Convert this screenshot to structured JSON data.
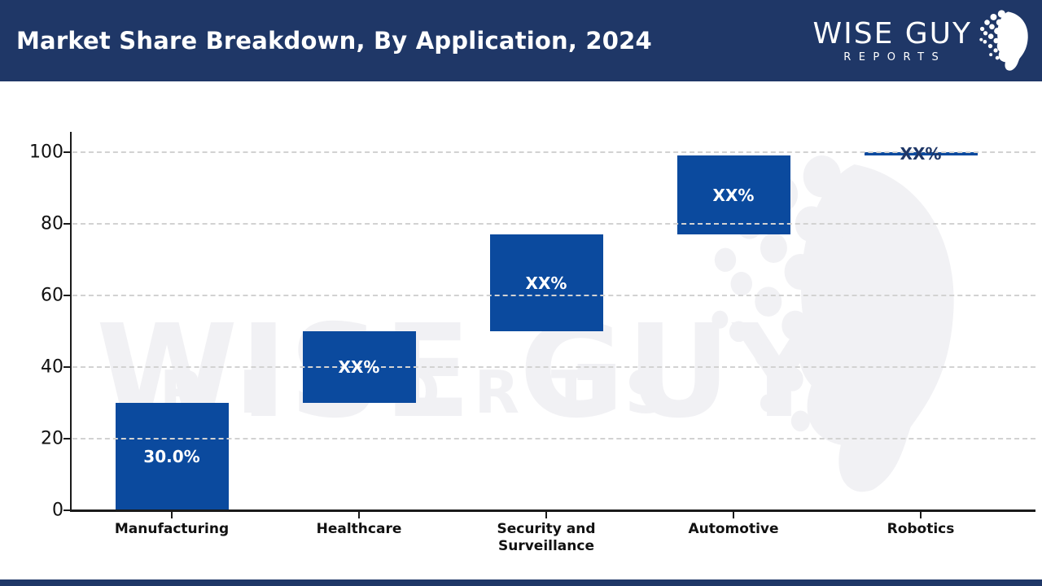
{
  "header": {
    "title": "Market Share Breakdown, By Application, 2024",
    "logo": {
      "line1": "WISE GUY",
      "line2": "REPORTS"
    }
  },
  "watermark": {
    "line1": "WISE GUY",
    "line2": "REPORTS"
  },
  "chart_data": {
    "type": "bar",
    "subtype": "waterfall",
    "title": "Market Share Breakdown, By Application, 2024",
    "categories": [
      "Manufacturing",
      "Healthcare",
      "Security and\nSurveillance",
      "Automotive",
      "Robotics"
    ],
    "segments": [
      {
        "category": "Manufacturing",
        "start": 0,
        "end": 30,
        "value": 30.0,
        "label": "30.0%",
        "label_color": "#ffffff"
      },
      {
        "category": "Healthcare",
        "start": 30,
        "end": 50,
        "value": 20,
        "label": "XX%",
        "label_color": "#ffffff"
      },
      {
        "category": "Security and Surveillance",
        "start": 50,
        "end": 77,
        "value": 27,
        "label": "XX%",
        "label_color": "#ffffff"
      },
      {
        "category": "Automotive",
        "start": 77,
        "end": 99,
        "value": 22,
        "label": "XX%",
        "label_color": "#ffffff"
      },
      {
        "category": "Robotics",
        "start": 99,
        "end": 100,
        "value": 1,
        "label": "XX%",
        "label_color": "#1f3767"
      }
    ],
    "xlabel": "",
    "ylabel": "",
    "ylim": [
      0,
      100
    ],
    "yticks": [
      0,
      20,
      40,
      60,
      80,
      100
    ],
    "grid": "horizontal-dashed",
    "legend": "none",
    "bar_color": "#0b4a9e"
  },
  "colors": {
    "header_bg": "#1f3767",
    "footer_bg": "#1f3767",
    "bar": "#0b4a9e",
    "gridline": "#d2d2d2",
    "axis": "#1a1a1a",
    "watermark": "#f1f1f4",
    "title_text": "#ffffff"
  }
}
